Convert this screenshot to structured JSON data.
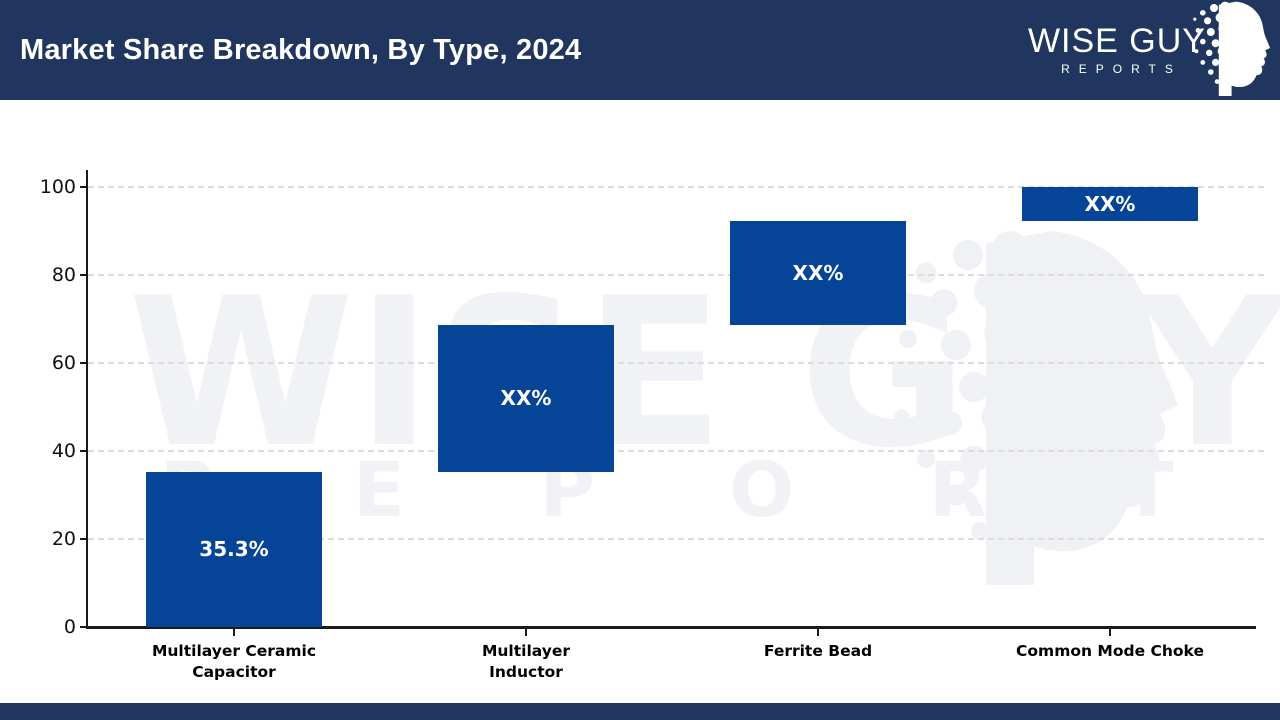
{
  "header": {
    "title": "Market Share Breakdown, By Type, 2024",
    "logo": {
      "wordmark": "WISE GUY",
      "subtext": "REPORTS"
    }
  },
  "watermark": {
    "wordmark": "WISE GUY",
    "subtext": "R E P O R T S"
  },
  "footer": {},
  "colors": {
    "header_bg": "#21365E",
    "footer_bg": "#21365E",
    "bar": "#054496",
    "bar_label": "#FFFFFF",
    "gridline": "#DCDCDC",
    "axis": "#1A1A1A",
    "watermark": "#F1F2F5"
  },
  "chart_data": {
    "type": "bar",
    "subtype": "floating-waterfall-stacked",
    "title": "Market Share Breakdown, By Type, 2024",
    "categories": [
      "Multilayer Ceramic Capacitor",
      "Multilayer Inductor",
      "Ferrite Bead",
      "Common Mode Choke"
    ],
    "category_label_lines": [
      [
        "Multilayer Ceramic",
        "Capacitor"
      ],
      [
        "Multilayer",
        "Inductor"
      ],
      [
        "Ferrite Bead"
      ],
      [
        "Common Mode Choke"
      ]
    ],
    "segments": [
      {
        "category": "Multilayer Ceramic Capacitor",
        "start": 0,
        "end": 35.3,
        "label": "35.3%"
      },
      {
        "category": "Multilayer Inductor",
        "start": 35.3,
        "end": 68.6,
        "label": "XX%"
      },
      {
        "category": "Ferrite Bead",
        "start": 68.6,
        "end": 92.2,
        "label": "XX%"
      },
      {
        "category": "Common Mode Choke",
        "start": 92.2,
        "end": 100,
        "label": "XX%"
      }
    ],
    "ylim": [
      0,
      100
    ],
    "yticks": [
      0,
      20,
      40,
      60,
      80,
      100
    ],
    "xlabel": "",
    "ylabel": "",
    "grid": "dashed-horizontal",
    "legend": "none",
    "bar_color": "#054496"
  }
}
